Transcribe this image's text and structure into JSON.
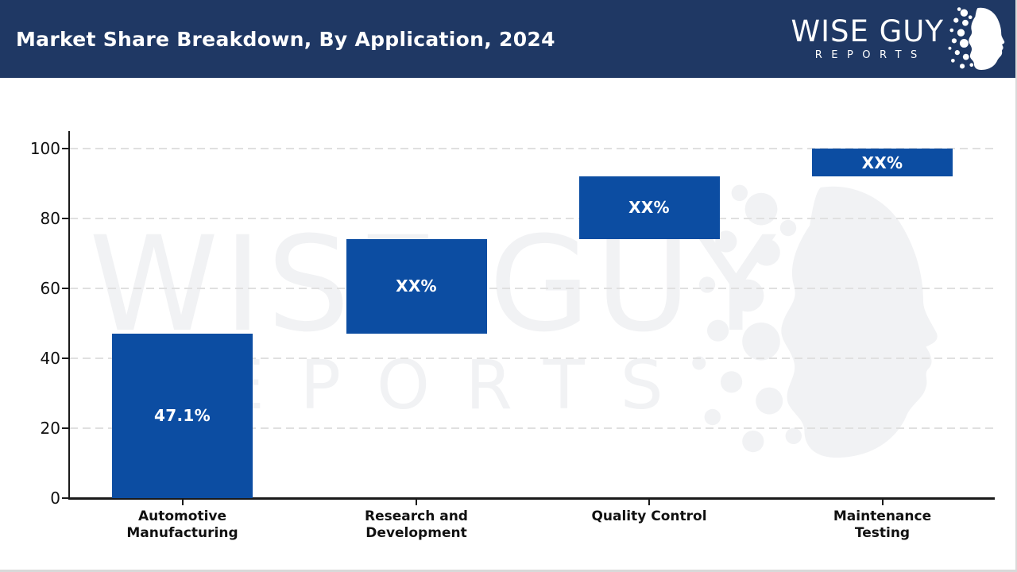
{
  "header": {
    "title": "Market Share Breakdown, By Application, 2024",
    "logo": {
      "line1": "WISE GUY",
      "line2": "REPORTS"
    }
  },
  "watermark": {
    "line1": "WISE GUY",
    "line2": "REPORTS"
  },
  "colors": {
    "header_bg": "#1F3864",
    "bar": "#0C4DA2",
    "bar_label": "#FFFFFF",
    "grid": "#E0E0E0",
    "axis": "#1A1A1A",
    "tick_label": "#111111",
    "watermark": "#F1F2F4"
  },
  "chart_data": {
    "type": "bar",
    "variant": "waterfall",
    "title": "Market Share Breakdown, By Application, 2024",
    "categories": [
      "Automotive Manufacturing",
      "Research and Development",
      "Quality Control",
      "Maintenance Testing"
    ],
    "category_lines": [
      [
        "Automotive",
        "Manufacturing"
      ],
      [
        "Research and",
        "Development"
      ],
      [
        "Quality Control"
      ],
      [
        "Maintenance",
        "Testing"
      ]
    ],
    "segments": [
      {
        "category": "Automotive Manufacturing",
        "start": 0,
        "end": 47.1,
        "label": "47.1%"
      },
      {
        "category": "Research and Development",
        "start": 47.1,
        "end": 74.2,
        "label": "XX%"
      },
      {
        "category": "Quality Control",
        "start": 74.2,
        "end": 92.0,
        "label": "XX%"
      },
      {
        "category": "Maintenance Testing",
        "start": 92.0,
        "end": 100.0,
        "label": "XX%"
      }
    ],
    "ylim": [
      0,
      100
    ],
    "yticks": [
      0,
      20,
      40,
      60,
      80,
      100
    ],
    "grid": "horizontal-dashed",
    "legend": "none"
  }
}
